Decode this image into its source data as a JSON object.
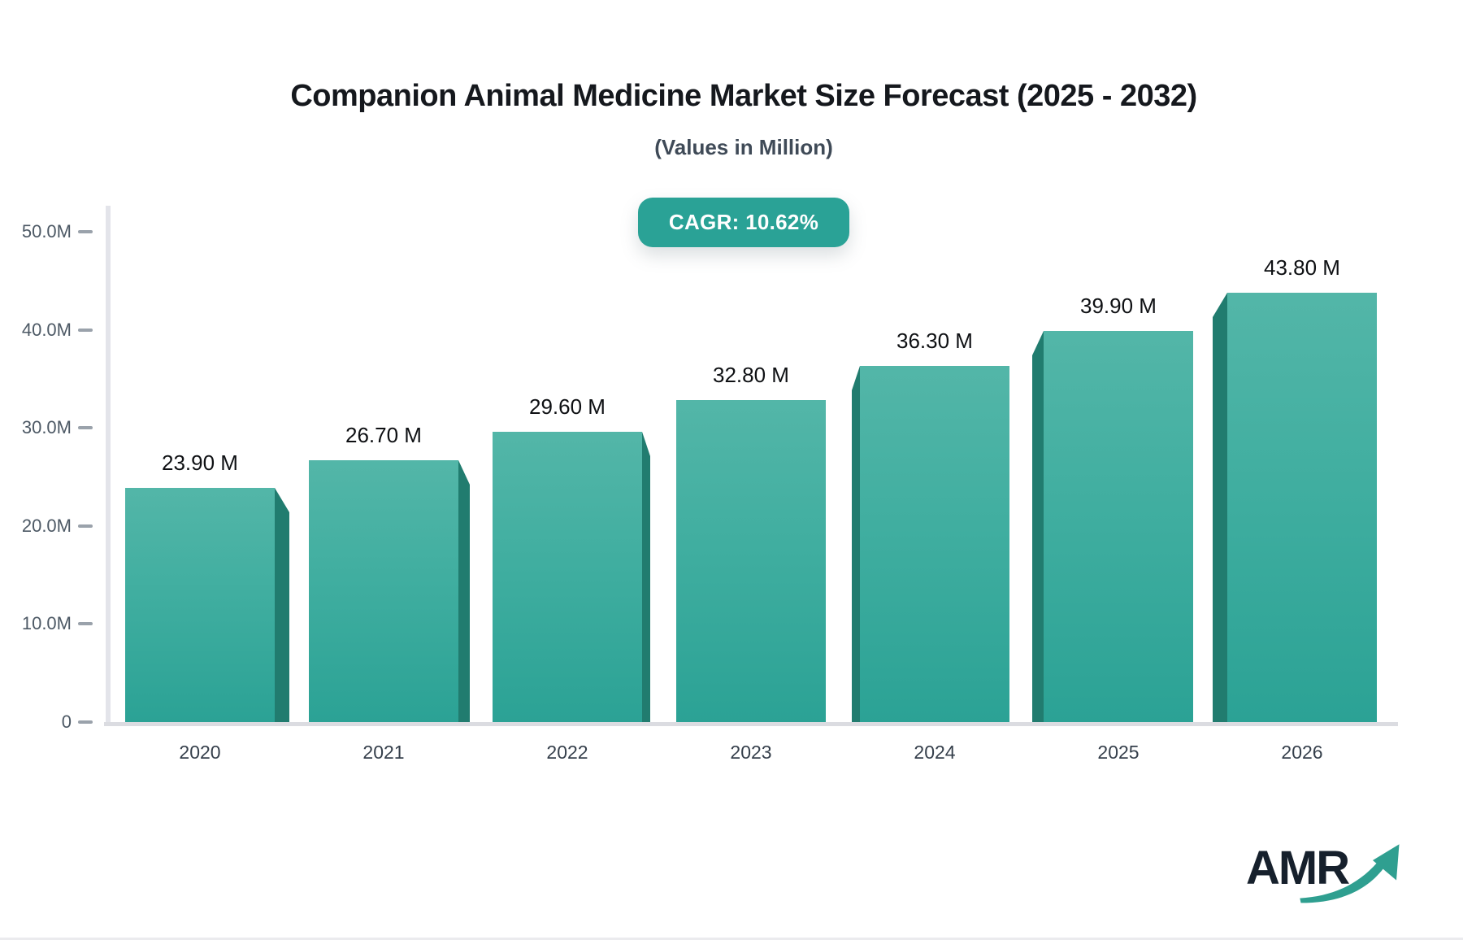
{
  "page": {
    "background": "#ffffff",
    "colors": {
      "accent_teal": "#2aa296",
      "bar_gradient_top": "#53b6a8",
      "bar_gradient_bottom": "#2ba295",
      "bar_side": "#217c6f",
      "title_text": "#15181d",
      "subtitle_text": "#3f4a57",
      "badge_text": "#ffffff",
      "y_tick_label": "#4d5965",
      "x_axis_label": "#353f4b",
      "value_label": "#0e1013",
      "y_axis_line": "#e3e4ea",
      "x_axis_line": "#dbdce1",
      "logo_text": "#16202c",
      "logo_arrow": "#2f9f90"
    }
  },
  "logo": {
    "text": "AMR",
    "icon": "trend-arrow-icon"
  },
  "chart_data": {
    "type": "bar",
    "title": "Companion Animal Medicine Market Size Forecast (2025 - 2032)",
    "subtitle": "(Values in Million)",
    "annotation": "CAGR: 10.62%",
    "categories": [
      "2020",
      "2021",
      "2022",
      "2023",
      "2024",
      "2025",
      "2026"
    ],
    "values": [
      23.9,
      26.7,
      29.6,
      32.8,
      36.3,
      39.9,
      43.8
    ],
    "value_labels": [
      "23.90 M",
      "26.70 M",
      "29.60 M",
      "32.80 M",
      "36.30 M",
      "39.90 M",
      "43.80 M"
    ],
    "xlabel": "",
    "ylabel": "",
    "ylim": [
      0,
      50
    ],
    "yticks": [
      {
        "value": 50,
        "label": "50.0M"
      },
      {
        "value": 40,
        "label": "40.0M"
      },
      {
        "value": 30,
        "label": "30.0M"
      },
      {
        "value": 20,
        "label": "20.0M"
      },
      {
        "value": 10,
        "label": "10.0M"
      },
      {
        "value": 0,
        "label": "0"
      }
    ],
    "grid": false,
    "legend": null,
    "bar_style": "3d-extruded-teal"
  }
}
